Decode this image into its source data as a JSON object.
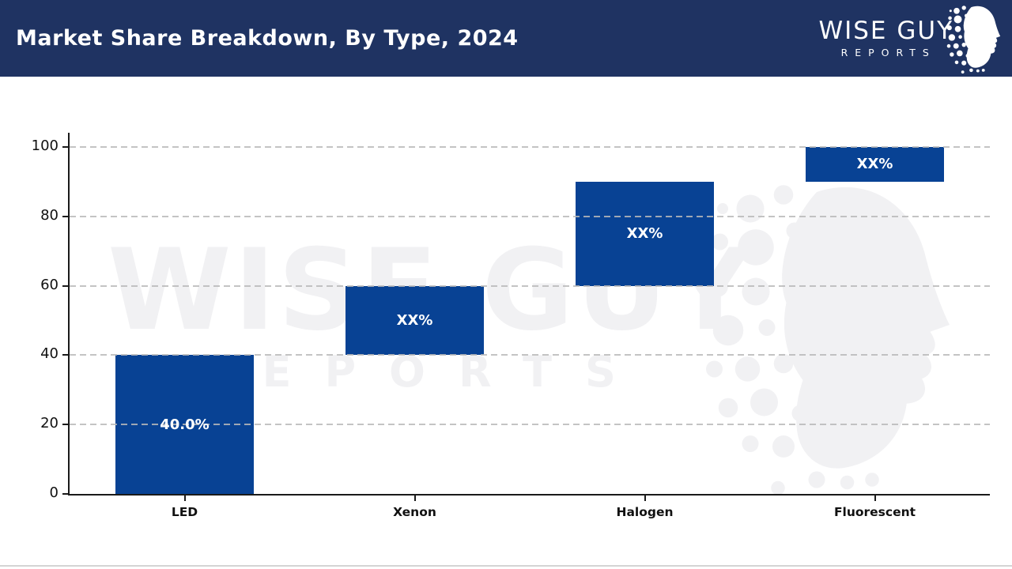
{
  "header": {
    "title": "Market Share Breakdown, By Type, 2024",
    "logo": {
      "line1": "WISE GUY",
      "line2": "REPORTS"
    }
  },
  "watermark": {
    "line1": "WISE GUY",
    "line2": "REPORTS"
  },
  "colors": {
    "header_bg": "#1f3362",
    "bar_fill": "#084294",
    "label_on_bar": "#ffffff",
    "watermark": "#f1f1f3",
    "grid": "#bbbbbb",
    "axis": "#1a1a1a"
  },
  "chart_data": {
    "type": "bar",
    "subtype": "waterfall",
    "title": "Market Share Breakdown, By Type, 2024",
    "categories": [
      "LED",
      "Xenon",
      "Halogen",
      "Fluorescent"
    ],
    "segments": [
      {
        "category": "LED",
        "start": 0,
        "end": 40,
        "label": "40.0%"
      },
      {
        "category": "Xenon",
        "start": 40,
        "end": 60,
        "label": "XX%"
      },
      {
        "category": "Halogen",
        "start": 60,
        "end": 90,
        "label": "XX%"
      },
      {
        "category": "Fluorescent",
        "start": 90,
        "end": 100,
        "label": "XX%"
      }
    ],
    "ylim": [
      0,
      100
    ],
    "yticks": [
      0,
      20,
      40,
      60,
      80,
      100
    ],
    "xlabel": "",
    "ylabel": "",
    "grid": "horizontal-dashed",
    "gridlines_above_bars": true,
    "legend": "none"
  }
}
